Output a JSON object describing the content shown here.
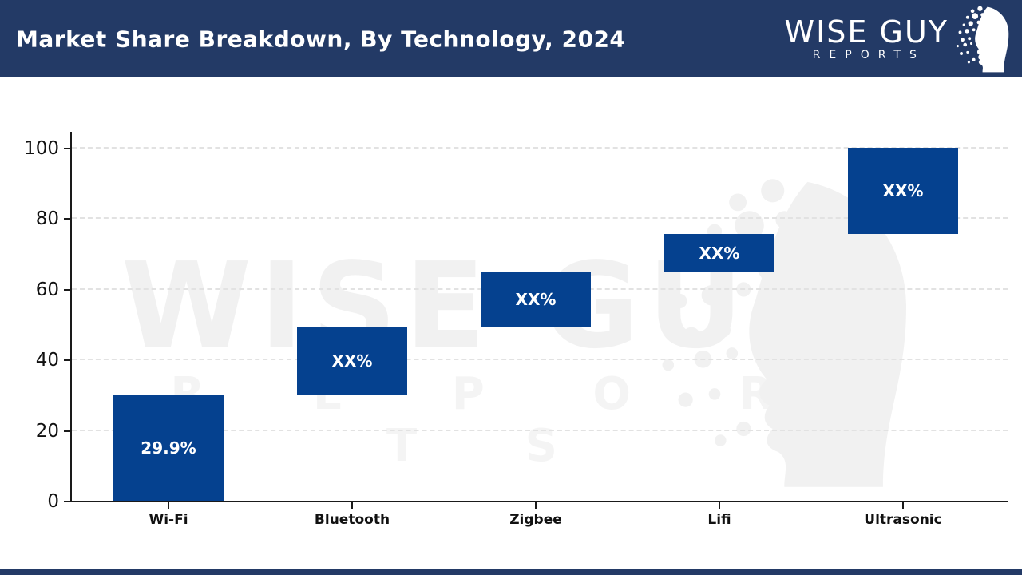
{
  "header": {
    "title": "Market Share Breakdown, By Technology, 2024",
    "background_color": "#233a66",
    "logo": {
      "line1": "WISE GUY",
      "line2": "REPORTS"
    }
  },
  "watermark": {
    "line1": "WISE GUY",
    "line2": "R E P O R T S"
  },
  "colors": {
    "bar": "#05418f",
    "gridline": "#e2e2e2",
    "axis": "#1a1a1a",
    "watermark": "#f1f1f1",
    "footer": "#233a66"
  },
  "chart_data": {
    "type": "bar",
    "subtype": "waterfall",
    "title": "Market Share Breakdown, By Technology, 2024",
    "categories": [
      "Wi-Fi",
      "Bluetooth",
      "Zigbee",
      "Lifi",
      "Ultrasonic"
    ],
    "segments": [
      {
        "category": "Wi-Fi",
        "start": 0,
        "end": 29.9,
        "label": "29.9%"
      },
      {
        "category": "Bluetooth",
        "start": 29.9,
        "end": 49.1,
        "label": "XX%"
      },
      {
        "category": "Zigbee",
        "start": 49.1,
        "end": 64.8,
        "label": "XX%"
      },
      {
        "category": "Lifi",
        "start": 64.8,
        "end": 75.6,
        "label": "XX%"
      },
      {
        "category": "Ultrasonic",
        "start": 75.6,
        "end": 100,
        "label": "XX%"
      }
    ],
    "y_ticks": [
      0,
      20,
      40,
      60,
      80,
      100
    ],
    "ylim": [
      0,
      100
    ],
    "xlabel": "",
    "ylabel": "",
    "grid": "horizontal-dashed",
    "legend": "none",
    "bar_color": "#05418f"
  }
}
